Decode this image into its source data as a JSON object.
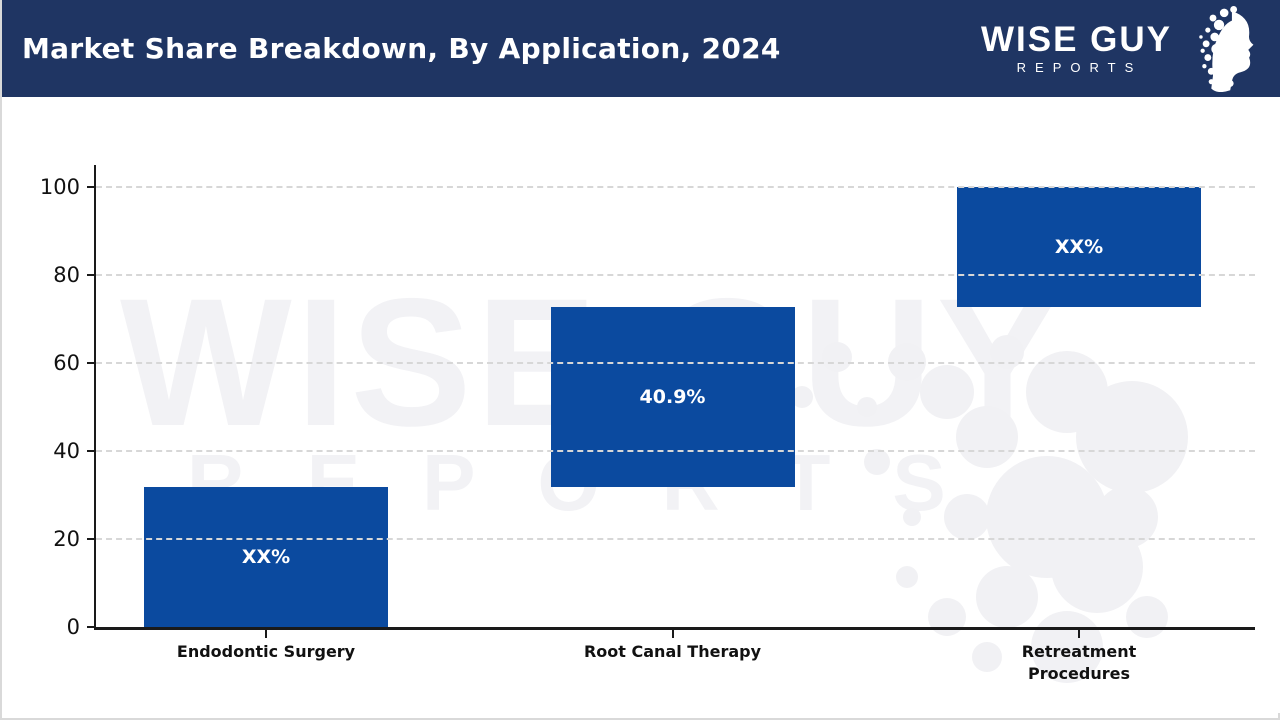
{
  "header": {
    "title": "Market Share Breakdown, By Application, 2024",
    "brand": {
      "line1": "WISE GUY",
      "line2": "REPORTS"
    }
  },
  "watermark": {
    "line1": "WISE GUY",
    "line2": "REPORTS"
  },
  "colors": {
    "header_bg": "#1f3563",
    "bar": "#0b4a9f",
    "gridline": "#d7d7d7",
    "axis": "#1a1a1a",
    "watermark": "#f2f2f5",
    "bar_label_text": "#ffffff",
    "tick_text": "#111111"
  },
  "chart_data": {
    "type": "bar",
    "subtype": "floating-waterfall",
    "title": "Market Share Breakdown, By Application, 2024",
    "categories": [
      "Endodontic Surgery",
      "Root Canal Therapy",
      "Retreatment Procedures"
    ],
    "category_lines": [
      [
        "Endodontic Surgery"
      ],
      [
        "Root Canal Therapy"
      ],
      [
        "Retreatment",
        "Procedures"
      ]
    ],
    "segments": [
      {
        "category": "Endodontic Surgery",
        "start": 0,
        "end": 31.8,
        "label": "XX%"
      },
      {
        "category": "Root Canal Therapy",
        "start": 31.8,
        "end": 72.7,
        "label": "40.9%"
      },
      {
        "category": "Retreatment Procedures",
        "start": 72.7,
        "end": 100,
        "label": "XX%"
      }
    ],
    "values": [
      31.8,
      40.9,
      27.3
    ],
    "bar_labels": [
      "XX%",
      "40.9%",
      "XX%"
    ],
    "xlabel": "",
    "ylabel": "",
    "ylim": [
      0,
      105
    ],
    "yticks": [
      0,
      20,
      40,
      60,
      80,
      100
    ],
    "grid": "horizontal-dashed-over-bars",
    "legend": "none",
    "unit": "percent"
  }
}
